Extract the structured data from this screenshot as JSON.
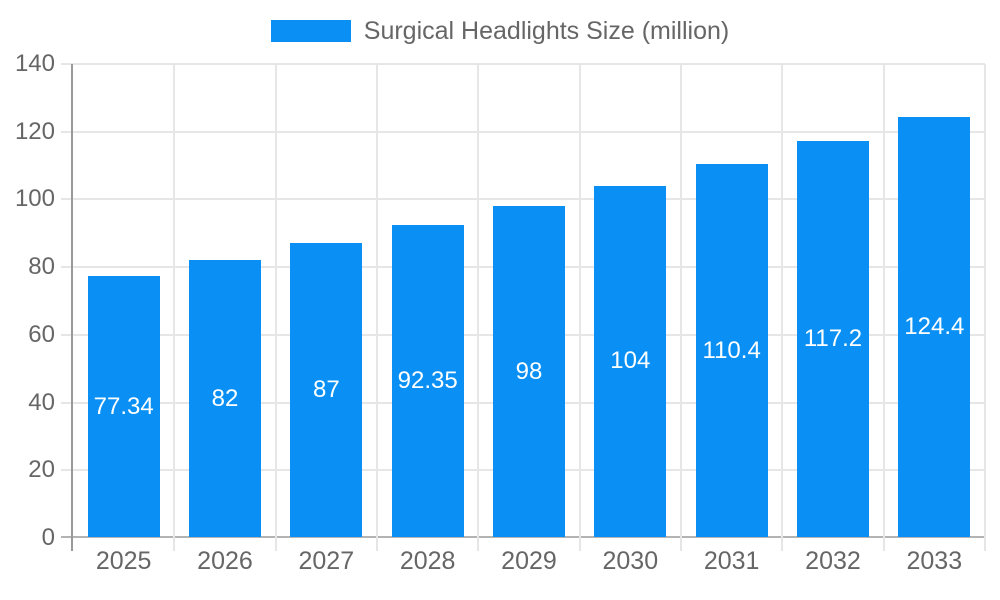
{
  "chart_data": {
    "type": "bar",
    "title": "Surgical Headlights Size (million)",
    "legend": [
      "Surgical Headlights Size (million)"
    ],
    "legend_position": "top",
    "categories": [
      "2025",
      "2026",
      "2027",
      "2028",
      "2029",
      "2030",
      "2031",
      "2032",
      "2033"
    ],
    "values": [
      77.34,
      82,
      87,
      92.35,
      98,
      104,
      110.4,
      117.2,
      124.4
    ],
    "value_labels": [
      "77.34",
      "82",
      "87",
      "92.35",
      "98",
      "104",
      "110.4",
      "117.2",
      "124.4"
    ],
    "xlabel": "",
    "ylabel": "",
    "ylim": [
      0,
      140
    ],
    "yticks": [
      0,
      20,
      40,
      60,
      80,
      100,
      120,
      140
    ],
    "grid": true,
    "colors": {
      "bar": "#0a90f5",
      "value_label": "#ffffff",
      "axis_text": "#666666",
      "gridline": "#e6e6e6",
      "zero_line_x": "#b3b3b3",
      "zero_line_y": "#999999",
      "background": "#ffffff"
    }
  }
}
